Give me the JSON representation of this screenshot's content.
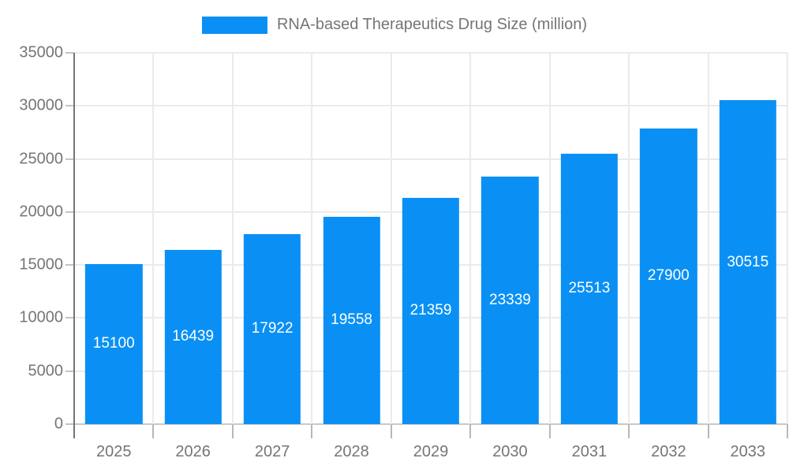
{
  "legend": {
    "label": "RNA-based Therapeutics Drug Size (million)"
  },
  "colors": {
    "bar": "#0a90f5",
    "bar_label": "#ffffff",
    "axis_text": "#757575",
    "gridline": "#ebebeb",
    "axis_line": "#757575"
  },
  "chart_data": {
    "type": "bar",
    "title": "RNA-based Therapeutics Drug Size (million)",
    "categories": [
      "2025",
      "2026",
      "2027",
      "2028",
      "2029",
      "2030",
      "2031",
      "2032",
      "2033"
    ],
    "values": [
      15100,
      16439,
      17922,
      19558,
      21359,
      23339,
      25513,
      27900,
      30515
    ],
    "bar_labels": [
      "15100",
      "16439",
      "17922",
      "19558",
      "21359",
      "23339",
      "25513",
      "27900",
      "30515"
    ],
    "xlabel": "",
    "ylabel": "",
    "ylim": [
      0,
      35000
    ],
    "ytick_step": 5000,
    "ytick_labels": [
      "0",
      "5000",
      "10000",
      "15000",
      "20000",
      "25000",
      "30000",
      "35000"
    ],
    "grid": true,
    "legend_position": "top-center",
    "bar_label_position": "inside-center"
  }
}
